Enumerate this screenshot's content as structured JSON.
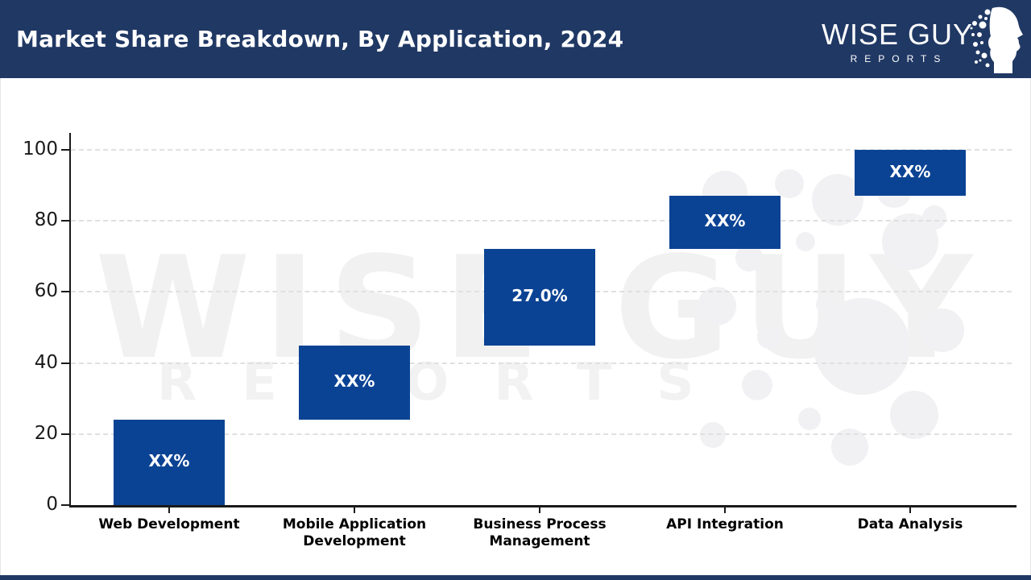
{
  "header": {
    "title": "Market Share Breakdown, By Application, 2024",
    "logo": {
      "wordmark": "WISE GUY",
      "subtext": "REPORTS"
    }
  },
  "watermark": {
    "wordmark": "WISE GUY",
    "subtext": "REPORTS"
  },
  "colors": {
    "header_background": "#203864",
    "bar_fill": "#0b4394",
    "bar_label": "#ffffff",
    "axis": "#1a1a1a",
    "gridline": "#e0e0e0",
    "watermark": "#f1f1f1"
  },
  "chart_data": {
    "type": "bar",
    "subtype": "waterfall",
    "title": "Market Share Breakdown, By Application, 2024",
    "categories": [
      "Web Development",
      "Mobile Application Development",
      "Business Process Management",
      "API Integration",
      "Data Analysis"
    ],
    "bars": [
      {
        "category": "Web Development",
        "start": 0,
        "end": 24,
        "value": 24,
        "label": "XX%"
      },
      {
        "category": "Mobile Application Development",
        "start": 24,
        "end": 45,
        "value": 21,
        "label": "XX%"
      },
      {
        "category": "Business Process Management",
        "start": 45,
        "end": 72,
        "value": 27,
        "label": "27.0%"
      },
      {
        "category": "API Integration",
        "start": 72,
        "end": 87,
        "value": 15,
        "label": "XX%"
      },
      {
        "category": "Data Analysis",
        "start": 87,
        "end": 100,
        "value": 13,
        "label": "XX%"
      }
    ],
    "yticks": [
      0,
      20,
      40,
      60,
      80,
      100
    ],
    "ylim": [
      0,
      105
    ],
    "xlabel": "",
    "ylabel": "",
    "grid": "horizontal-dashed",
    "legend": "none",
    "bar_color": "#0b4394",
    "bar_label_color": "#ffffff"
  }
}
